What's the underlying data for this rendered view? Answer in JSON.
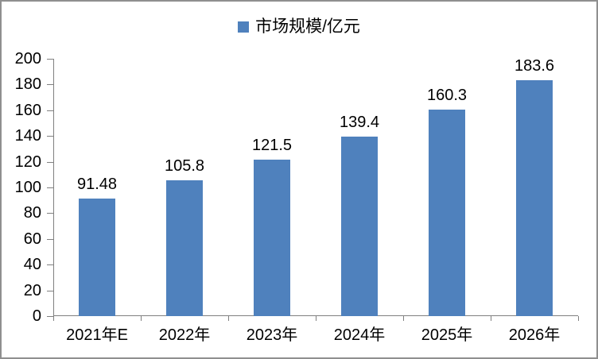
{
  "chart_data": {
    "type": "bar",
    "title": "",
    "legend_position": "top",
    "categories": [
      "2021年E",
      "2022年",
      "2023年",
      "2024年",
      "2025年",
      "2026年"
    ],
    "series": [
      {
        "name": "市场规模/亿元",
        "values": [
          91.48,
          105.8,
          121.5,
          139.4,
          160.3,
          183.6
        ]
      }
    ],
    "value_labels": [
      "91.48",
      "105.8",
      "121.5",
      "139.4",
      "160.3",
      "183.6"
    ],
    "xlabel": "",
    "ylabel": "",
    "ylim": [
      0,
      200
    ],
    "ytick_step": 20,
    "yticks": [
      0,
      20,
      40,
      60,
      80,
      100,
      120,
      140,
      160,
      180,
      200
    ],
    "grid": false,
    "bar_color": "#4f81bd",
    "axis_color": "#808080",
    "text_color": "#000000"
  }
}
